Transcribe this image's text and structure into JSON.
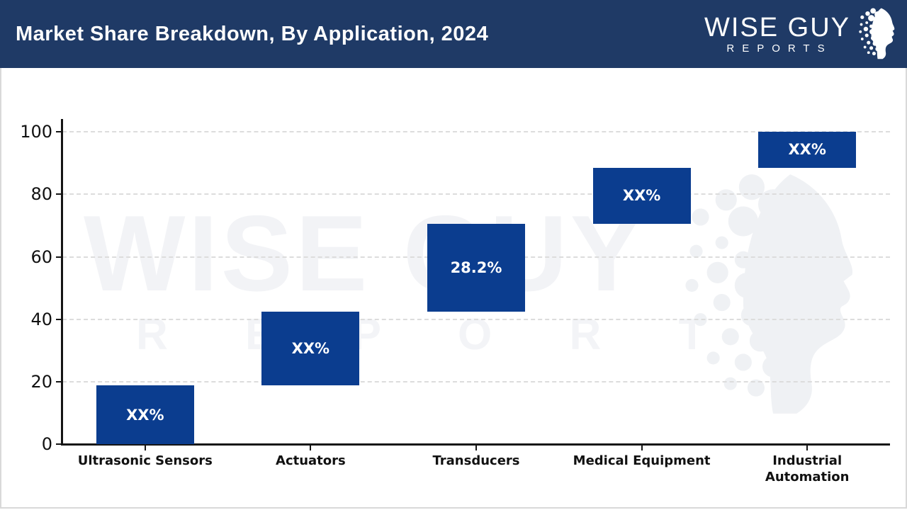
{
  "header": {
    "title": "Market Share Breakdown, By Application, 2024",
    "bg_color": "#1f3a66",
    "logo_line1": "WISE GUY",
    "logo_line2": "REPORTS"
  },
  "watermark": {
    "line1": "WISE GUY",
    "line2": "R E P O R T S"
  },
  "chart_data": {
    "type": "bar",
    "subtype": "waterfall",
    "title": "Market Share Breakdown, By Application, 2024",
    "categories": [
      "Ultrasonic Sensors",
      "Actuators",
      "Transducers",
      "Medical Equipment",
      "Industrial Automation"
    ],
    "series": [
      {
        "name": "Market share (%)",
        "segments": [
          {
            "category": "Ultrasonic Sensors",
            "start": 0,
            "end": 18.8,
            "label": "XX%"
          },
          {
            "category": "Actuators",
            "start": 18.8,
            "end": 42.4,
            "label": "XX%"
          },
          {
            "category": "Transducers",
            "start": 42.4,
            "end": 70.6,
            "label": "28.2%"
          },
          {
            "category": "Medical Equipment",
            "start": 70.6,
            "end": 88.6,
            "label": "XX%"
          },
          {
            "category": "Industrial Automation",
            "start": 88.6,
            "end": 100,
            "label": "XX%"
          }
        ]
      }
    ],
    "yticks": [
      0,
      20,
      40,
      60,
      80,
      100
    ],
    "ylim": [
      0,
      104
    ],
    "xlabel": "",
    "ylabel": "",
    "grid": "horizontal-dashed",
    "legend": "none",
    "bar_color": "#0b3d8f",
    "bar_label_color": "#ffffff",
    "grid_color": "#dcdcdc",
    "axis_color": "#151515"
  }
}
